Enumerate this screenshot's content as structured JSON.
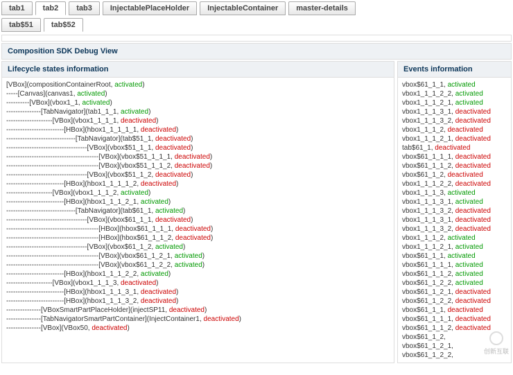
{
  "colors": {
    "activated": "#009900",
    "deactivated": "#cc0000",
    "panel_header_bg": "#eef1f4",
    "panel_header_text": "#0b3558",
    "border": "#dddddd"
  },
  "top_tabs": [
    "tab1",
    "tab2",
    "tab3",
    "InjectablePlaceHolder",
    "InjectableContainer",
    "master-details"
  ],
  "top_tabs_active_index": 1,
  "sub_tabs": [
    "tab$51",
    "tab$52"
  ],
  "sub_tabs_active_index": 1,
  "main_title": "Composition SDK Debug View",
  "left_panel_title": "Lifecycle states information",
  "right_panel_title": "Events information",
  "lifecycle": [
    {
      "indent": 0,
      "type": "VBox",
      "id": "compositionContainerRoot",
      "state": "activated"
    },
    {
      "indent": 1,
      "type": "Canvas",
      "id": "canvas1",
      "state": "activated"
    },
    {
      "indent": 2,
      "type": "VBox",
      "id": "vbox1_1",
      "state": "activated"
    },
    {
      "indent": 3,
      "type": "TabNavigator",
      "id": "tab1_1_1",
      "state": "activated"
    },
    {
      "indent": 4,
      "type": "VBox",
      "id": "vbox1_1_1_1",
      "state": "deactivated"
    },
    {
      "indent": 5,
      "type": "HBox",
      "id": "hbox1_1_1_1_1",
      "state": "deactivated"
    },
    {
      "indent": 6,
      "type": "TabNavigator",
      "id": "tab$51_1",
      "state": "deactivated"
    },
    {
      "indent": 7,
      "type": "VBox",
      "id": "vbox$51_1_1",
      "state": "deactivated"
    },
    {
      "indent": 8,
      "type": "VBox",
      "id": "vbox$51_1_1_1",
      "state": "deactivated"
    },
    {
      "indent": 8,
      "type": "VBox",
      "id": "vbox$51_1_1_2",
      "state": "deactivated"
    },
    {
      "indent": 7,
      "type": "VBox",
      "id": "vbox$51_1_2",
      "state": "deactivated"
    },
    {
      "indent": 5,
      "type": "HBox",
      "id": "hbox1_1_1_1_2",
      "state": "deactivated"
    },
    {
      "indent": 4,
      "type": "VBox",
      "id": "vbox1_1_1_2",
      "state": "activated"
    },
    {
      "indent": 5,
      "type": "HBox",
      "id": "hbox1_1_1_2_1",
      "state": "activated"
    },
    {
      "indent": 6,
      "type": "TabNavigator",
      "id": "tab$61_1",
      "state": "activated"
    },
    {
      "indent": 7,
      "type": "VBox",
      "id": "vbox$61_1_1",
      "state": "deactivated"
    },
    {
      "indent": 8,
      "type": "HBox",
      "id": "hbox$61_1_1_1",
      "state": "deactivated"
    },
    {
      "indent": 8,
      "type": "HBox",
      "id": "hbox$61_1_1_2",
      "state": "deactivated"
    },
    {
      "indent": 7,
      "type": "VBox",
      "id": "vbox$61_1_2",
      "state": "activated"
    },
    {
      "indent": 8,
      "type": "VBox",
      "id": "vbox$61_1_2_1",
      "state": "activated"
    },
    {
      "indent": 8,
      "type": "VBox",
      "id": "vbox$61_1_2_2",
      "state": "activated"
    },
    {
      "indent": 5,
      "type": "HBox",
      "id": "hbox1_1_1_2_2",
      "state": "activated"
    },
    {
      "indent": 4,
      "type": "VBox",
      "id": "vbox1_1_1_3",
      "state": "deactivated"
    },
    {
      "indent": 5,
      "type": "HBox",
      "id": "hbox1_1_1_3_1",
      "state": "deactivated"
    },
    {
      "indent": 5,
      "type": "HBox",
      "id": "hbox1_1_1_3_2",
      "state": "deactivated"
    },
    {
      "indent": 3,
      "type": "VBoxSmartPartPlaceHolder",
      "id": "injectSP11",
      "state": "deactivated"
    },
    {
      "indent": 3,
      "type": "TabNavigatorSmartPartContainer",
      "id": "InjectContainer1",
      "state": "deactivated"
    },
    {
      "indent": 3,
      "type": "VBox",
      "id": "VBox50",
      "state": "deactivated"
    }
  ],
  "events": [
    {
      "id": "vbox$61_1_1",
      "state": "activated"
    },
    {
      "id": "vbox1_1_1_2_2",
      "state": "activated"
    },
    {
      "id": "vbox1_1_1_2_1",
      "state": "activated"
    },
    {
      "id": "vbox1_1_1_3_1",
      "state": "deactivated"
    },
    {
      "id": "vbox1_1_1_3_2",
      "state": "deactivated"
    },
    {
      "id": "vbox1_1_1_2",
      "state": "deactivated"
    },
    {
      "id": "vbox1_1_1_2_1",
      "state": "deactivated"
    },
    {
      "id": "tab$61_1",
      "state": "deactivated"
    },
    {
      "id": "vbox$61_1_1_1",
      "state": "deactivated"
    },
    {
      "id": "vbox$61_1_1_2",
      "state": "deactivated"
    },
    {
      "id": "vbox$61_1_2",
      "state": "deactivated"
    },
    {
      "id": "vbox1_1_1_2_2",
      "state": "deactivated"
    },
    {
      "id": "vbox1_1_1_3",
      "state": "activated"
    },
    {
      "id": "vbox1_1_1_3_1",
      "state": "activated"
    },
    {
      "id": "vbox1_1_1_3_2",
      "state": "deactivated"
    },
    {
      "id": "vbox1_1_1_3_1",
      "state": "deactivated"
    },
    {
      "id": "vbox1_1_1_3_2",
      "state": "deactivated"
    },
    {
      "id": "vbox1_1_1_2",
      "state": "activated"
    },
    {
      "id": "vbox1_1_1_2_1",
      "state": "activated"
    },
    {
      "id": "vbox$61_1_1",
      "state": "activated"
    },
    {
      "id": "vbox$61_1_1_1",
      "state": "activated"
    },
    {
      "id": "vbox$61_1_1_2",
      "state": "activated"
    },
    {
      "id": "vbox$61_1_2_2",
      "state": "activated"
    },
    {
      "id": "vbox$61_1_2_1",
      "state": "deactivated"
    },
    {
      "id": "vbox$61_1_2_2",
      "state": "deactivated"
    },
    {
      "id": "vbox$61_1_1",
      "state": "deactivated"
    },
    {
      "id": "vbox$61_1_1_1",
      "state": "deactivated"
    },
    {
      "id": "vbox$61_1_1_2",
      "state": "deactivated"
    },
    {
      "id": "vbox$61_1_2",
      "state": ""
    },
    {
      "id": "vbox$61_1_2_1",
      "state": ""
    },
    {
      "id": "vbox$61_1_2_2",
      "state": ""
    }
  ],
  "watermark": "创新互联"
}
